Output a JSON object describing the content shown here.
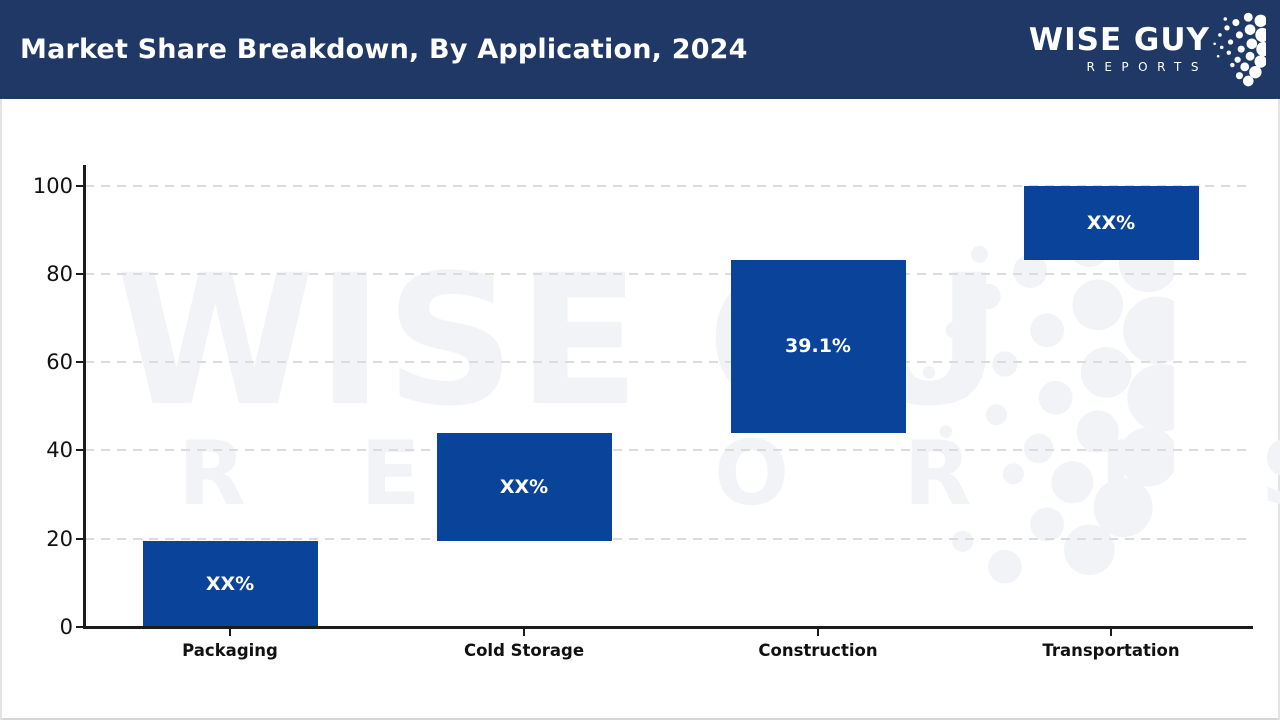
{
  "header": {
    "title": "Market Share Breakdown, By Application, 2024",
    "bg_color": "#1f3866",
    "logo": {
      "line1": "WISE GUY",
      "line2": "REPORTS"
    }
  },
  "watermark": {
    "line1": "WISE GU",
    "line2": "R E P O R T S"
  },
  "chart_data": {
    "type": "bar",
    "subtype": "waterfall-style floating bars",
    "title": "Market Share Breakdown, By Application, 2024",
    "xlabel": "",
    "ylabel": "",
    "categories": [
      "Packaging",
      "Cold Storage",
      "Construction",
      "Transportation"
    ],
    "segments": [
      {
        "category": "Packaging",
        "start": 0,
        "end": 19.4,
        "value": 19.4,
        "label": "XX%"
      },
      {
        "category": "Cold Storage",
        "start": 19.4,
        "end": 44.0,
        "value": 24.6,
        "label": "XX%"
      },
      {
        "category": "Construction",
        "start": 44.0,
        "end": 83.1,
        "value": 39.1,
        "label": "39.1%"
      },
      {
        "category": "Transportation",
        "start": 83.1,
        "end": 100.0,
        "value": 16.9,
        "label": "XX%"
      }
    ],
    "y_ticks": [
      0,
      20,
      40,
      60,
      80,
      100
    ],
    "ylim": [
      0,
      100
    ],
    "grid": "horizontal dashed",
    "grid_color": "#dcdcdc",
    "bar_color": "#09439a",
    "bar_label_color": "#ffffff",
    "axis_color": "#1c1c1c",
    "legend": "none"
  }
}
